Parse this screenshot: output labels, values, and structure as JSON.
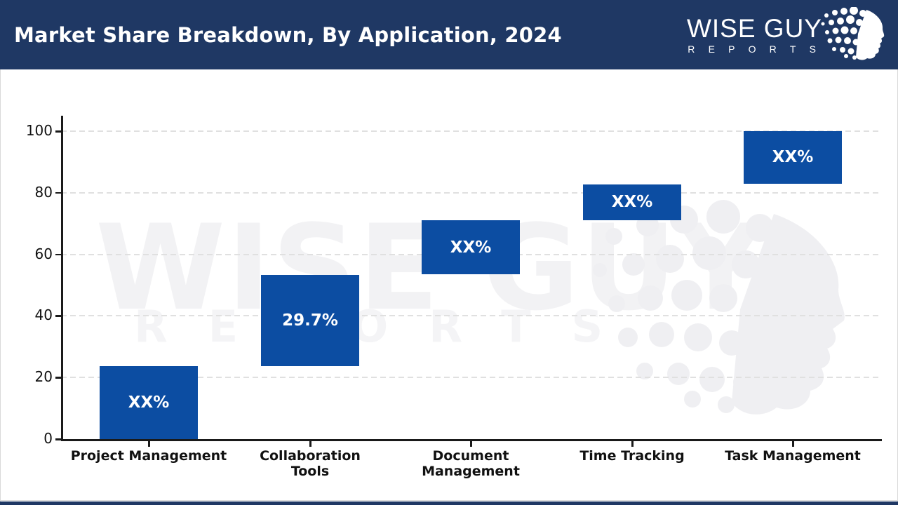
{
  "header": {
    "title": "Market Share Breakdown, By Application, 2024",
    "bg_color": "#1f3864",
    "logo": {
      "line1": "WISE GUY",
      "line2": "REPORTS"
    }
  },
  "watermark": {
    "line1": "WISE GUY",
    "line2": "REPORTS"
  },
  "chart_data": {
    "type": "bar",
    "subtype": "waterfall",
    "title": "Market Share Breakdown, By Application, 2024",
    "xlabel": "",
    "ylabel": "",
    "categories": [
      "Project Management",
      "Collaboration Tools",
      "Document Management",
      "Time Tracking",
      "Task Management"
    ],
    "bars": [
      {
        "category": "Project Management",
        "label_lines": [
          "Project Management"
        ],
        "start": 0,
        "end": 23.6,
        "value": 23.6,
        "label": "XX%"
      },
      {
        "category": "Collaboration Tools",
        "label_lines": [
          "Collaboration",
          "Tools"
        ],
        "start": 23.6,
        "end": 53.3,
        "value": 29.7,
        "label": "29.7%"
      },
      {
        "category": "Document Management",
        "label_lines": [
          "Document",
          "Management"
        ],
        "start": 53.5,
        "end": 71.0,
        "value": 17.5,
        "label": "XX%"
      },
      {
        "category": "Time Tracking",
        "label_lines": [
          "Time Tracking"
        ],
        "start": 71.0,
        "end": 82.8,
        "value": 11.8,
        "label": "XX%"
      },
      {
        "category": "Task Management",
        "label_lines": [
          "Task Management"
        ],
        "start": 83.0,
        "end": 100.0,
        "value": 17.0,
        "label": "XX%"
      }
    ],
    "y_ticks": [
      0,
      20,
      40,
      60,
      80,
      100
    ],
    "ylim": [
      0,
      105
    ],
    "grid": "horizontal-dashed",
    "legend": "none",
    "bar_color": "#0c4da2",
    "bar_label_color": "#ffffff",
    "grid_color": "#e0e0e0",
    "axis_color": "#1a1a1a",
    "accent_navy": "#1f3864"
  }
}
